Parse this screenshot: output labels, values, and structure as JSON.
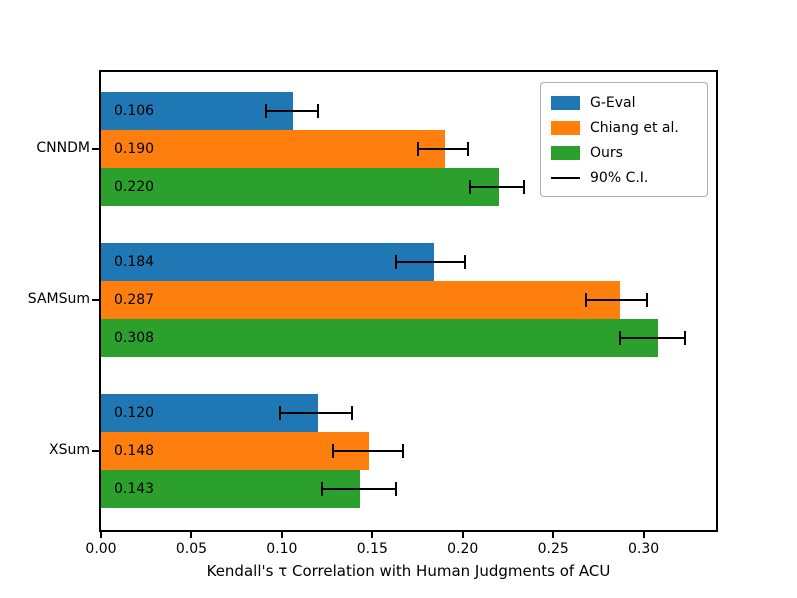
{
  "chart_data": {
    "type": "bar",
    "orientation": "horizontal",
    "title": "",
    "xlabel": "Kendall's τ Correlation with Human Judgments of ACU",
    "ylabel": "",
    "categories": [
      "CNNDM",
      "SAMSum",
      "XSum"
    ],
    "series": [
      {
        "name": "G-Eval",
        "color": "#1f77b4",
        "values": [
          0.106,
          0.184,
          0.12
        ],
        "labels": [
          "0.106",
          "0.184",
          "0.120"
        ],
        "ci_low": [
          0.091,
          0.163,
          0.099
        ],
        "ci_high": [
          0.12,
          0.201,
          0.139
        ]
      },
      {
        "name": "Chiang et al.",
        "color": "#ff7f0e",
        "values": [
          0.19,
          0.287,
          0.148
        ],
        "labels": [
          "0.190",
          "0.287",
          "0.148"
        ],
        "ci_low": [
          0.175,
          0.268,
          0.128
        ],
        "ci_high": [
          0.203,
          0.302,
          0.167
        ]
      },
      {
        "name": "Ours",
        "color": "#2ca02c",
        "values": [
          0.22,
          0.308,
          0.143
        ],
        "labels": [
          "0.220",
          "0.308",
          "0.143"
        ],
        "ci_low": [
          0.204,
          0.287,
          0.122
        ],
        "ci_high": [
          0.234,
          0.323,
          0.163
        ]
      }
    ],
    "error_bar_color": "#000000",
    "xlim": [
      0,
      0.34
    ],
    "xticks": [
      0.0,
      0.05,
      0.1,
      0.15,
      0.2,
      0.25,
      0.3
    ],
    "xtick_labels": [
      "0.00",
      "0.05",
      "0.10",
      "0.15",
      "0.20",
      "0.25",
      "0.30"
    ],
    "grid": false,
    "legend": {
      "position": "upper right",
      "entries": [
        {
          "label": "G-Eval",
          "color": "#1f77b4",
          "type": "patch"
        },
        {
          "label": "Chiang et al.",
          "color": "#ff7f0e",
          "type": "patch"
        },
        {
          "label": "Ours",
          "color": "#2ca02c",
          "type": "patch"
        },
        {
          "label": "90% C.I.",
          "color": "#000000",
          "type": "line"
        }
      ]
    }
  }
}
